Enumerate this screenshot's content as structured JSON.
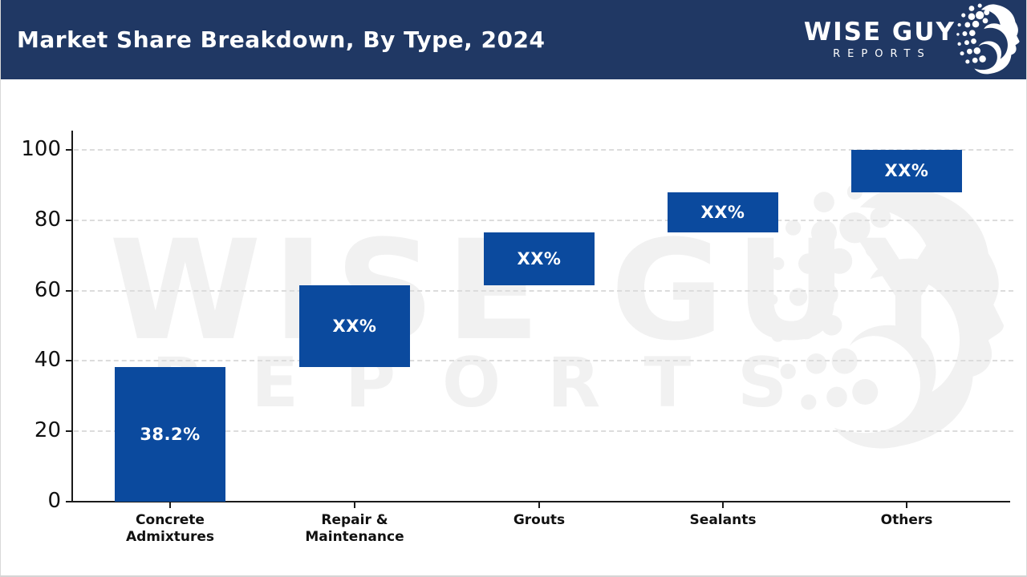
{
  "header": {
    "title": "Market Share Breakdown, By Type, 2024"
  },
  "logo": {
    "name_top": "WISE GUY",
    "name_bottom": "REPORTS"
  },
  "watermark": {
    "line1": "WISE GUY",
    "line2": "REPORTS"
  },
  "colors": {
    "header_bg": "#203864",
    "bar": "#0b4a9e",
    "grid": "#dcdcdc",
    "watermark": "#f1f1f1",
    "bar_label": "#ffffff"
  },
  "chart_data": {
    "type": "bar",
    "subtype": "waterfall",
    "title": "Market Share Breakdown, By Type, 2024",
    "categories": [
      "Concrete Admixtures",
      "Repair & Maintenance",
      "Grouts",
      "Sealants",
      "Others"
    ],
    "category_lines": [
      [
        "Concrete",
        "Admixtures"
      ],
      [
        "Repair &",
        "Maintenance"
      ],
      [
        "Grouts"
      ],
      [
        "Sealants"
      ],
      [
        "Others"
      ]
    ],
    "segments": [
      {
        "category": "Concrete Admixtures",
        "label": "38.2%",
        "start": 0,
        "end": 38.2
      },
      {
        "category": "Repair & Maintenance",
        "label": "XX%",
        "start": 38.2,
        "end": 61.5
      },
      {
        "category": "Grouts",
        "label": "XX%",
        "start": 61.5,
        "end": 76.5
      },
      {
        "category": "Sealants",
        "label": "XX%",
        "start": 76.5,
        "end": 88.0
      },
      {
        "category": "Others",
        "label": "XX%",
        "start": 88.0,
        "end": 100.0
      }
    ],
    "y_ticks": [
      0,
      20,
      40,
      60,
      80,
      100
    ],
    "ylim": [
      0,
      105
    ],
    "xlabel": "",
    "ylabel": "",
    "grid": "horizontal-dashed",
    "legend": "none"
  }
}
